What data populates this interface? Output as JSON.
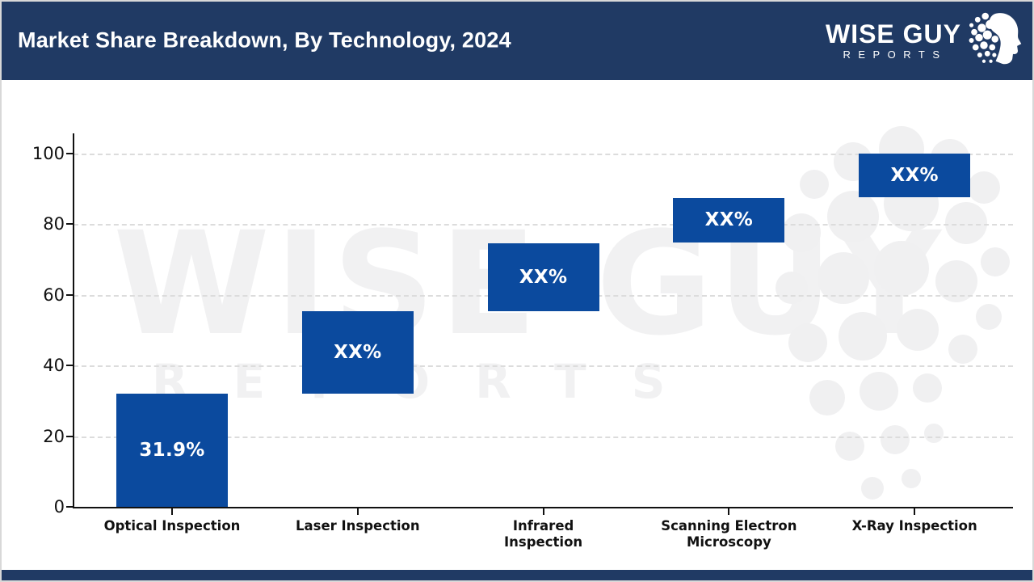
{
  "header": {
    "title": "Market Share Breakdown, By Technology, 2024",
    "logo": {
      "line1": "WISE GUY",
      "line2": "REPORTS"
    }
  },
  "watermark": {
    "line1": "WISE GUY",
    "line2": "REPORTS"
  },
  "colors": {
    "header_bg": "#203a64",
    "footer_bg": "#203a64",
    "bar": "#0b4a9e",
    "grid": "#dcdcdc",
    "axis_text": "#111111",
    "value_label_text": "#ffffff",
    "watermark": "#f1f1f2"
  },
  "chart_data": {
    "type": "bar",
    "subtype": "waterfall",
    "title": "Market Share Breakdown, By Technology, 2024",
    "categories": [
      "Optical Inspection",
      "Laser Inspection",
      "Infrared\nInspection",
      "Scanning Electron\nMicroscopy",
      "X-Ray Inspection"
    ],
    "segments": [
      {
        "category": "Optical Inspection",
        "start": 0,
        "end": 31.9,
        "label": "31.9%"
      },
      {
        "category": "Laser Inspection",
        "start": 32,
        "end": 55.4,
        "label": "XX%"
      },
      {
        "category": "Infrared Inspection",
        "start": 55.4,
        "end": 74.6,
        "label": "XX%"
      },
      {
        "category": "Scanning Electron Microscopy",
        "start": 74.8,
        "end": 87.4,
        "label": "XX%"
      },
      {
        "category": "X-Ray Inspection",
        "start": 87.6,
        "end": 100,
        "label": "XX%"
      }
    ],
    "xlabel": "",
    "ylabel": "",
    "ylim": [
      0,
      100
    ],
    "y_ticks": [
      0,
      20,
      40,
      60,
      80,
      100
    ],
    "grid": "horizontal-dashed",
    "legend": "none"
  }
}
